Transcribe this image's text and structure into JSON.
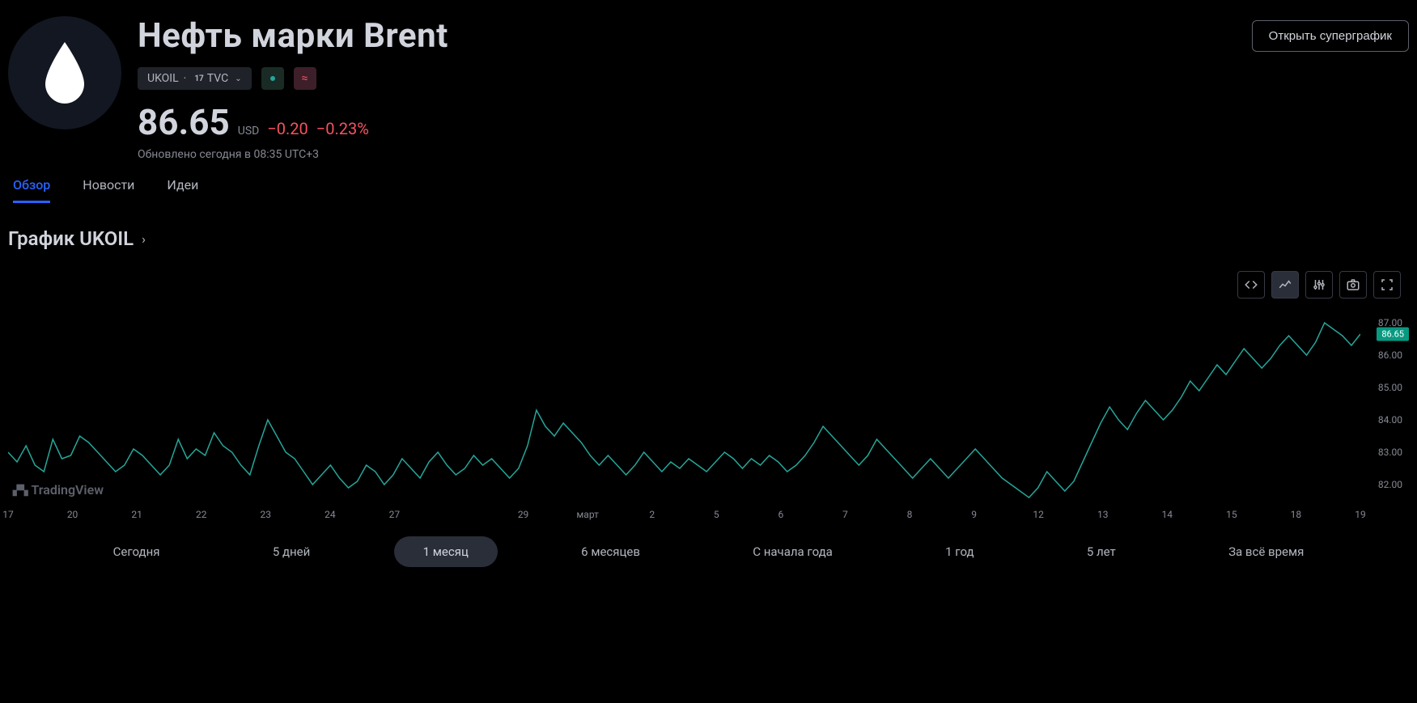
{
  "header": {
    "title": "Нефть марки Brent",
    "super_button": "Открыть суперграфик",
    "ticker": {
      "symbol": "UKOIL",
      "sep": "·",
      "provider": "TVC"
    },
    "price": "86.65",
    "currency": "USD",
    "change_abs": "−0.20",
    "change_pct": "−0.23%",
    "updated": "Обновлено сегодня в 08:35 UTC+3",
    "change_color": "#f7525f"
  },
  "tabs": [
    {
      "label": "Обзор",
      "active": true
    },
    {
      "label": "Новости",
      "active": false
    },
    {
      "label": "Идеи",
      "active": false
    }
  ],
  "chart": {
    "title": "График UKOIL",
    "watermark": "TradingView",
    "type": "line",
    "line_color": "#26a69a",
    "background": "#000000",
    "ylim": [
      81.5,
      87.5
    ],
    "yticks": [
      82.0,
      83.0,
      84.0,
      85.0,
      86.0,
      87.0
    ],
    "price_tag": "86.65",
    "price_tag_color": "#089981",
    "xlabels": [
      "17",
      "20",
      "21",
      "22",
      "23",
      "24",
      "27",
      "",
      "29",
      "март",
      "2",
      "5",
      "6",
      "7",
      "8",
      "9",
      "12",
      "13",
      "14",
      "15",
      "18",
      "19"
    ],
    "series": [
      83.0,
      82.7,
      83.2,
      82.6,
      82.4,
      83.4,
      82.8,
      82.9,
      83.5,
      83.3,
      83.0,
      82.7,
      82.4,
      82.6,
      83.1,
      82.9,
      82.6,
      82.3,
      82.6,
      83.4,
      82.8,
      83.1,
      82.9,
      83.6,
      83.2,
      83.0,
      82.6,
      82.3,
      83.2,
      84.0,
      83.5,
      83.0,
      82.8,
      82.4,
      82.0,
      82.3,
      82.6,
      82.2,
      81.9,
      82.1,
      82.6,
      82.4,
      82.0,
      82.3,
      82.8,
      82.5,
      82.2,
      82.7,
      83.0,
      82.6,
      82.3,
      82.5,
      82.9,
      82.6,
      82.8,
      82.5,
      82.2,
      82.5,
      83.2,
      84.3,
      83.8,
      83.5,
      83.9,
      83.6,
      83.3,
      82.9,
      82.6,
      82.9,
      82.6,
      82.3,
      82.6,
      83.0,
      82.7,
      82.4,
      82.7,
      82.5,
      82.8,
      82.6,
      82.4,
      82.7,
      83.0,
      82.8,
      82.5,
      82.8,
      82.6,
      82.9,
      82.7,
      82.4,
      82.6,
      82.9,
      83.3,
      83.8,
      83.5,
      83.2,
      82.9,
      82.6,
      82.9,
      83.4,
      83.1,
      82.8,
      82.5,
      82.2,
      82.5,
      82.8,
      82.5,
      82.2,
      82.5,
      82.8,
      83.1,
      82.8,
      82.5,
      82.2,
      82.0,
      81.8,
      81.6,
      81.9,
      82.4,
      82.1,
      81.8,
      82.1,
      82.7,
      83.3,
      83.9,
      84.4,
      84.0,
      83.7,
      84.2,
      84.6,
      84.3,
      84.0,
      84.3,
      84.7,
      85.2,
      84.9,
      85.3,
      85.7,
      85.4,
      85.8,
      86.2,
      85.9,
      85.6,
      85.9,
      86.3,
      86.6,
      86.3,
      86.0,
      86.4,
      87.0,
      86.8,
      86.6,
      86.3,
      86.65
    ]
  },
  "ranges": [
    {
      "label": "Сегодня",
      "active": false
    },
    {
      "label": "5 дней",
      "active": false
    },
    {
      "label": "1 месяц",
      "active": true
    },
    {
      "label": "6 месяцев",
      "active": false
    },
    {
      "label": "С начала года",
      "active": false
    },
    {
      "label": "1 год",
      "active": false
    },
    {
      "label": "5 лет",
      "active": false
    },
    {
      "label": "За всё время",
      "active": false
    }
  ]
}
